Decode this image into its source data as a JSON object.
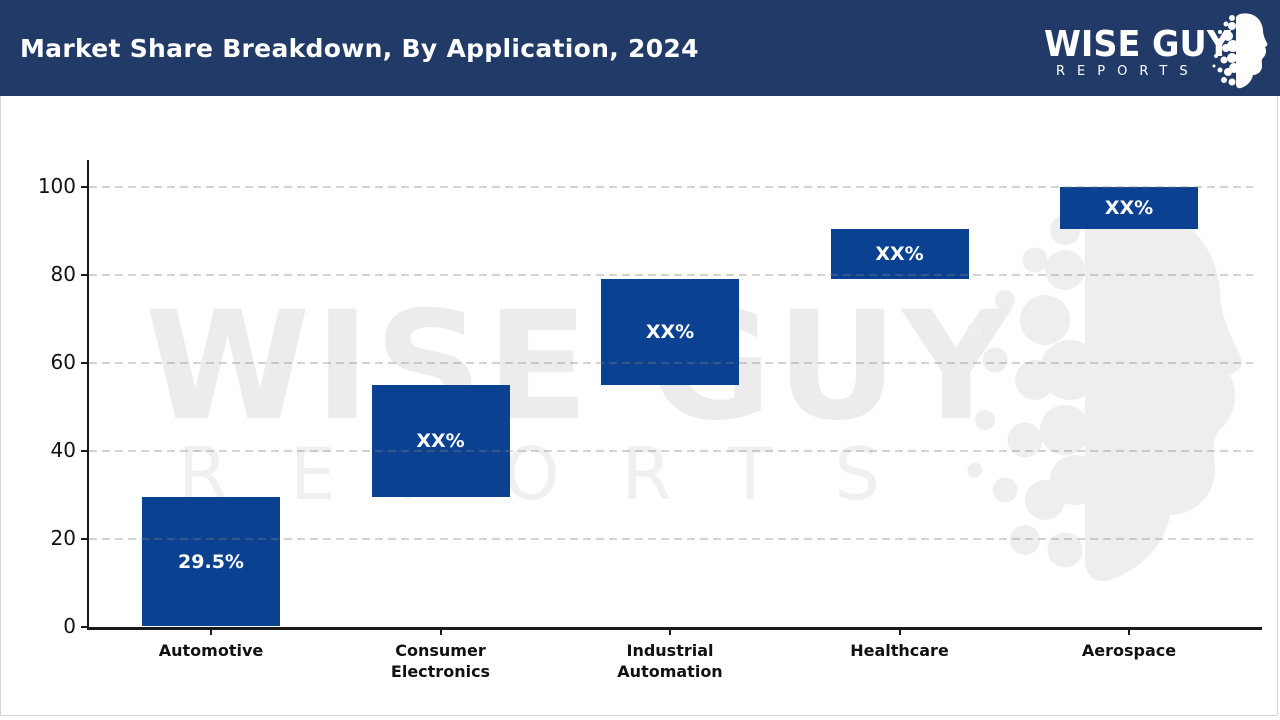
{
  "header": {
    "title": "Market Share Breakdown, By Application, 2024",
    "bg_color": "#213a68",
    "logo_line1": "WISE GUY",
    "logo_line2": "REPORTS"
  },
  "watermark": {
    "line1": "WISE GUY",
    "line2": "REPORTS"
  },
  "chart_data": {
    "type": "bar",
    "subtype": "waterfall",
    "title": "Market Share Breakdown, By Application, 2024",
    "categories": [
      "Automotive",
      "Consumer Electronics",
      "Industrial Automation",
      "Healthcare",
      "Aerospace"
    ],
    "category_lines": [
      [
        "Automotive"
      ],
      [
        "Consumer",
        "Electronics"
      ],
      [
        "Industrial",
        "Automation"
      ],
      [
        "Healthcare"
      ],
      [
        "Aerospace"
      ]
    ],
    "segments": [
      {
        "category": "Automotive",
        "start": 0,
        "end": 29.5,
        "label": "29.5%"
      },
      {
        "category": "Consumer Electronics",
        "start": 29.5,
        "end": 55,
        "label": "XX%"
      },
      {
        "category": "Industrial Automation",
        "start": 55,
        "end": 79,
        "label": "XX%"
      },
      {
        "category": "Healthcare",
        "start": 79,
        "end": 90.5,
        "label": "XX%"
      },
      {
        "category": "Aerospace",
        "start": 90.5,
        "end": 100,
        "label": "XX%"
      }
    ],
    "xlabel": "",
    "ylabel": "",
    "ylim": [
      0,
      100
    ],
    "yticks": [
      0,
      20,
      40,
      60,
      80,
      100
    ],
    "grid": "horizontal-dashed",
    "legend": "none",
    "bar_color": "#0a4191",
    "bar_label_color": "#ffffff",
    "axis_color": "#1a1a1a"
  }
}
